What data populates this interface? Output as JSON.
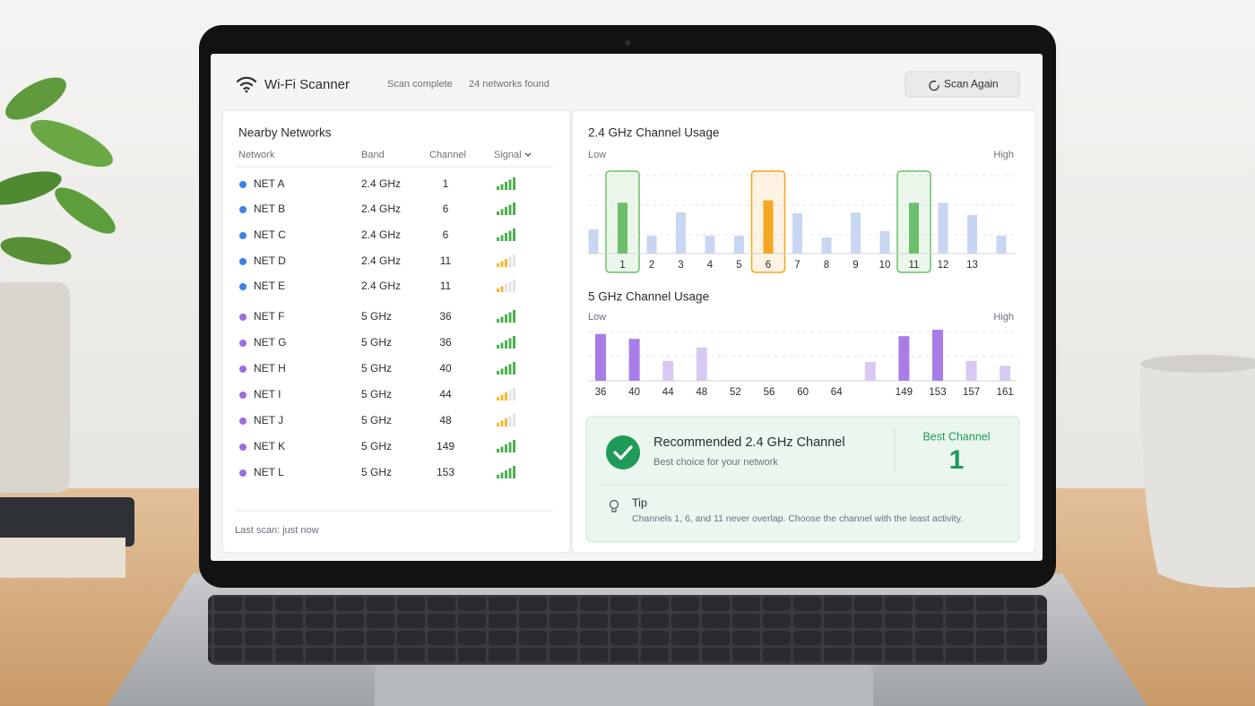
{
  "header": {
    "title": "Wi-Fi Scanner",
    "status": "Scan complete",
    "count": "24 networks found",
    "button": "Scan Again"
  },
  "networks": {
    "title": "Nearby Networks",
    "columns": [
      "Network",
      "Band",
      "Channel",
      "Signal"
    ],
    "rows": [
      {
        "name": "NET A",
        "band": "2.4 GHz",
        "channel": 1,
        "signal": 5,
        "color": "#3b82e6"
      },
      {
        "name": "NET B",
        "band": "2.4 GHz",
        "channel": 6,
        "signal": 5,
        "color": "#3b82e6"
      },
      {
        "name": "NET C",
        "band": "2.4 GHz",
        "channel": 6,
        "signal": 5,
        "color": "#3b82e6"
      },
      {
        "name": "NET D",
        "band": "2.4 GHz",
        "channel": 11,
        "signal": 3,
        "color": "#3b82e6"
      },
      {
        "name": "NET E",
        "band": "2.4 GHz",
        "channel": 11,
        "signal": 2,
        "color": "#3b82e6"
      },
      {
        "name": "NET F",
        "band": "5 GHz",
        "channel": 36,
        "signal": 5,
        "color": "#9b6ddf"
      },
      {
        "name": "NET G",
        "band": "5 GHz",
        "channel": 36,
        "signal": 5,
        "color": "#9b6ddf"
      },
      {
        "name": "NET H",
        "band": "5 GHz",
        "channel": 40,
        "signal": 5,
        "color": "#9b6ddf"
      },
      {
        "name": "NET I",
        "band": "5 GHz",
        "channel": 44,
        "signal": 3,
        "color": "#9b6ddf"
      },
      {
        "name": "NET J",
        "band": "5 GHz",
        "channel": 48,
        "signal": 3,
        "color": "#9b6ddf"
      },
      {
        "name": "NET K",
        "band": "5 GHz",
        "channel": 149,
        "signal": 5,
        "color": "#9b6ddf"
      },
      {
        "name": "NET L",
        "band": "5 GHz",
        "channel": 153,
        "signal": 5,
        "color": "#9b6ddf"
      }
    ],
    "footer": "Last scan: just now"
  },
  "charts": [
    {
      "type": "bar",
      "title": "2.4 GHz Channel Usage",
      "low_label": "Low",
      "high_label": "High",
      "categories": [
        null,
        1,
        2,
        3,
        4,
        5,
        6,
        7,
        8,
        9,
        10,
        11,
        12,
        13,
        null
      ],
      "values": [
        30,
        63,
        22,
        51,
        22,
        22,
        66,
        50,
        20,
        51,
        28,
        63,
        63,
        48,
        22
      ],
      "colors": [
        "#c9d6f2",
        "#6cbf6c",
        "#c9d6f2",
        "#c9d6f2",
        "#c9d6f2",
        "#c9d6f2",
        "#f5a623",
        "#c9d6f2",
        "#c9d6f2",
        "#c9d6f2",
        "#c9d6f2",
        "#6cbf6c",
        "#c9d6f2",
        "#c9d6f2",
        "#c9d6f2"
      ],
      "highlighted": [
        1,
        6,
        11
      ]
    },
    {
      "type": "bar",
      "title": "5 GHz Channel Usage",
      "low_label": "Low",
      "high_label": "High",
      "categories": [
        36,
        40,
        44,
        48,
        52,
        56,
        60,
        64,
        null,
        149,
        153,
        157,
        161
      ],
      "values": [
        87,
        78,
        37,
        62,
        0,
        0,
        0,
        0,
        35,
        83,
        95,
        37,
        28
      ],
      "colors": [
        "#a87de8",
        "#a87de8",
        "#d8c9f3",
        "#d8c9f3",
        "#d8c9f3",
        "#d8c9f3",
        "#d8c9f3",
        "#d8c9f3",
        "#d8c9f3",
        "#a87de8",
        "#a87de8",
        "#d8c9f3",
        "#d8c9f3"
      ]
    }
  ],
  "recommendation": {
    "title": "Recommended 2.4 GHz Channel",
    "subtitle": "Best choice for your network",
    "best_label": "Best Channel",
    "best_value": 1,
    "tip_title": "Tip",
    "tip_text": "Channels 1, 6, and 11 never overlap. Choose the channel with the least activity."
  }
}
